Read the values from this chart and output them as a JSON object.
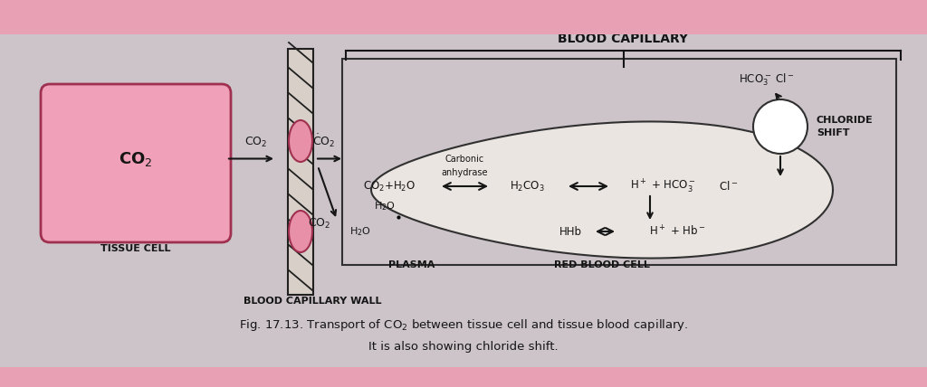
{
  "fig_w": 10.24,
  "fig_h": 4.28,
  "bg_top_strip_color": "#e8a0b4",
  "bg_bottom_strip_color": "#e8a0b4",
  "bg_main_color": "#c8c0c4",
  "bg_diagram_color": "#d0c8cc",
  "tissue_cell_fill": "#f0a0b8",
  "tissue_cell_edge": "#a03050",
  "wall_fill": "#d0c8c0",
  "wall_edge": "#202020",
  "wall_stripe_color": "#202020",
  "rbc_oval_fill": "#e890a8",
  "rbc_oval_edge": "#a03050",
  "blob_fill": "#ede8e4",
  "blob_edge": "#303030",
  "circle_fill": "#ffffff",
  "circle_edge": "#303030",
  "rect_edge": "#303030",
  "text_color": "#151515",
  "arrow_color": "#151515",
  "title_text": "BLOOD CAPILLARY",
  "caption1": "Fig. 17.13. Transport of CO$_2$ between tissue cell and tissue blood capillary.",
  "caption2": "It is also showing chloride shift.",
  "label_tissue": "TISSUE CELL",
  "label_wall": "BLOOD CAPILLARY WALL",
  "label_plasma": "PLASMA",
  "label_rbc": "RED BLOOD CELL",
  "label_chloride": "CHLORIDE\nSHIFT"
}
